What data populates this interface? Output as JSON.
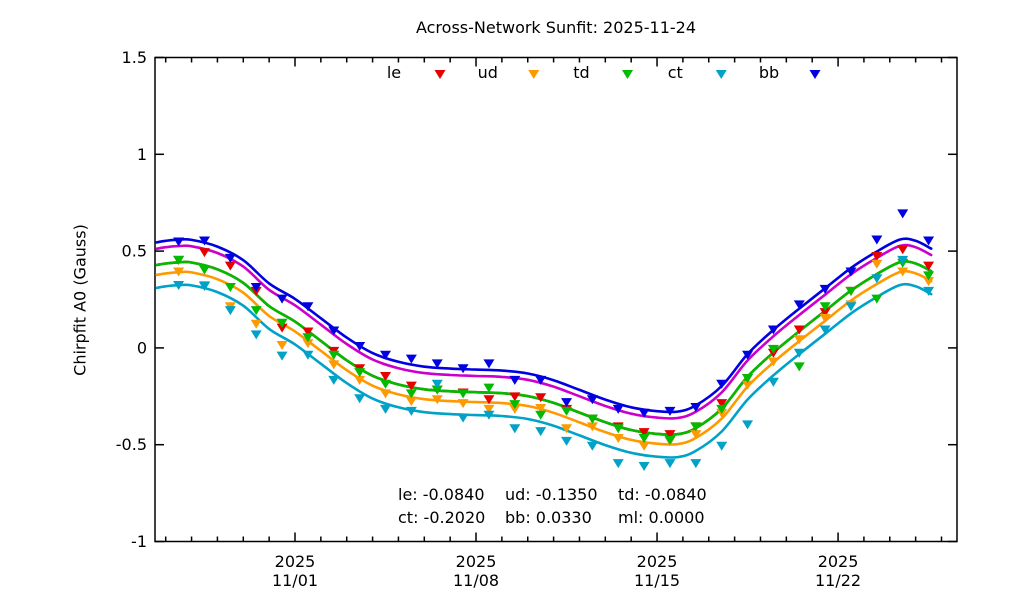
{
  "title": "Across-Network Sunfit: 2025-11-24",
  "colors": {
    "le": "#e60000",
    "ud": "#ff9900",
    "td": "#00bb00",
    "ct": "#00a2c8",
    "bb": "#0000e0",
    "ml": "#cc00cc",
    "axis": "#000000",
    "background": "#ffffff"
  },
  "y_axis": {
    "label": "Chirpfit A0 (Gauss)",
    "ticks": [
      {
        "value": -1,
        "label": "-1"
      },
      {
        "value": -0.5,
        "label": "-0.5"
      },
      {
        "value": 0,
        "label": "0"
      },
      {
        "value": 0.5,
        "label": "0.5"
      },
      {
        "value": 1,
        "label": "1"
      },
      {
        "value": 1.5,
        "label": "1.5"
      }
    ]
  },
  "x_axis": {
    "major_ticks": [
      {
        "day": 0,
        "year": "2025",
        "date": "11/01"
      },
      {
        "day": 7,
        "year": "2025",
        "date": "11/08"
      },
      {
        "day": 14,
        "year": "2025",
        "date": "11/15"
      },
      {
        "day": 21,
        "year": "2025",
        "date": "11/22"
      }
    ],
    "minor_tick_step_days": 1,
    "minor_tick_first_day": -5,
    "minor_tick_last_day": 25
  },
  "legend": {
    "items": [
      {
        "id": "le",
        "label": "le"
      },
      {
        "id": "ud",
        "label": "ud"
      },
      {
        "id": "td",
        "label": "td"
      },
      {
        "id": "ct",
        "label": "ct"
      },
      {
        "id": "bb",
        "label": "bb"
      }
    ]
  },
  "annotation": {
    "rows": [
      [
        {
          "key": "le",
          "value": "-0.0840"
        },
        {
          "key": "ud",
          "value": "-0.1350"
        },
        {
          "key": "td",
          "value": "-0.0840"
        }
      ],
      [
        {
          "key": "ct",
          "value": "-0.2020"
        },
        {
          "key": "bb",
          "value": " 0.0330"
        },
        {
          "key": "ml",
          "value": " 0.0000"
        }
      ]
    ]
  },
  "chart_data": {
    "type": "line",
    "title": "Across-Network Sunfit: 2025-11-24",
    "xlabel": "",
    "ylabel": "Chirpfit A0 (Gauss)",
    "ylim": [
      -1,
      1.5
    ],
    "xlim_days_from_nov1": [
      -5.414,
      25.6
    ],
    "x_unit": "days relative to 2025-11-01",
    "grid": false,
    "legend_position": "top-center-inside",
    "offsets": {
      "le": -0.084,
      "ud": -0.135,
      "td": -0.084,
      "ct": -0.202,
      "bb": 0.033,
      "ml": 0.0
    },
    "base_curve": {
      "x": [
        -5.35,
        -5,
        -4.5,
        -4,
        -3,
        -2,
        -1,
        0,
        1,
        2,
        3,
        4,
        5,
        6,
        7,
        8,
        9,
        10,
        11,
        12,
        13,
        14,
        14.8,
        15.5,
        16.5,
        17.5,
        18.5,
        19.5,
        20.5,
        21.5,
        22.5,
        23.4,
        24,
        24.6
      ],
      "y": [
        0.512,
        0.52,
        0.526,
        0.525,
        0.49,
        0.42,
        0.3,
        0.22,
        0.12,
        0.02,
        -0.06,
        -0.105,
        -0.13,
        -0.14,
        -0.145,
        -0.15,
        -0.165,
        -0.2,
        -0.25,
        -0.3,
        -0.34,
        -0.36,
        -0.362,
        -0.33,
        -0.23,
        -0.065,
        0.06,
        0.17,
        0.275,
        0.38,
        0.465,
        0.527,
        0.52,
        0.48
      ]
    },
    "marker_days": [
      -4.5,
      -3.5,
      -2.5,
      -1.5,
      -0.5,
      0.5,
      1.5,
      2.5,
      3.5,
      4.5,
      5.5,
      6.5,
      7.5,
      8.5,
      9.5,
      10.5,
      11.5,
      12.5,
      13.5,
      14.5,
      15.5,
      16.5,
      17.5,
      18.5,
      19.5,
      20.5,
      21.5,
      22.5,
      23.5,
      24.5
    ],
    "series": [
      {
        "name": "le",
        "marker": "triangle-down",
        "curve": true,
        "values": [
          0.46,
          0.5,
          0.43,
          0.3,
          0.11,
          0.09,
          -0.01,
          -0.1,
          -0.14,
          -0.19,
          -0.21,
          -0.225,
          -0.26,
          -0.245,
          -0.25,
          -0.31,
          -0.36,
          -0.4,
          -0.43,
          -0.44,
          -0.4,
          -0.28,
          -0.15,
          -0.02,
          0.1,
          0.19,
          0.3,
          0.48,
          0.515,
          0.43
        ]
      },
      {
        "name": "ud",
        "marker": "triangle-down",
        "curve": true,
        "values": [
          0.4,
          0.33,
          0.22,
          0.13,
          0.02,
          0.03,
          -0.08,
          -0.16,
          -0.23,
          -0.27,
          -0.26,
          -0.28,
          -0.31,
          -0.31,
          -0.305,
          -0.41,
          -0.4,
          -0.46,
          -0.5,
          -0.475,
          -0.44,
          -0.33,
          -0.185,
          -0.065,
          0.05,
          0.16,
          0.23,
          0.44,
          0.4,
          0.35
        ]
      },
      {
        "name": "td",
        "marker": "triangle-down",
        "curve": true,
        "values": [
          0.46,
          0.41,
          0.32,
          0.2,
          0.135,
          0.06,
          -0.03,
          -0.12,
          -0.18,
          -0.23,
          -0.21,
          -0.23,
          -0.2,
          -0.285,
          -0.34,
          -0.32,
          -0.36,
          -0.41,
          -0.46,
          -0.47,
          -0.4,
          -0.31,
          -0.15,
          0.0,
          -0.09,
          0.22,
          0.3,
          0.26,
          0.445,
          0.38
        ]
      },
      {
        "name": "ct",
        "marker": "triangle-down",
        "curve": true,
        "values": [
          0.33,
          0.325,
          0.2,
          0.075,
          -0.035,
          -0.03,
          -0.16,
          -0.255,
          -0.31,
          -0.32,
          -0.18,
          -0.355,
          -0.34,
          -0.41,
          -0.425,
          -0.475,
          -0.5,
          -0.59,
          -0.605,
          -0.59,
          -0.59,
          -0.5,
          -0.39,
          -0.17,
          -0.02,
          0.1,
          0.22,
          0.365,
          0.46,
          0.3
        ]
      },
      {
        "name": "bb",
        "marker": "triangle-down",
        "curve": true,
        "values": [
          0.555,
          0.56,
          0.47,
          0.32,
          0.26,
          0.22,
          0.095,
          0.015,
          -0.03,
          -0.05,
          -0.075,
          -0.1,
          -0.075,
          -0.16,
          -0.16,
          -0.275,
          -0.26,
          -0.31,
          -0.33,
          -0.32,
          -0.3,
          -0.18,
          -0.03,
          0.1,
          0.23,
          0.31,
          0.4,
          0.565,
          0.7,
          0.56
        ]
      },
      {
        "name": "ml",
        "marker": null,
        "curve": true,
        "curve_only": true,
        "values": []
      }
    ]
  }
}
